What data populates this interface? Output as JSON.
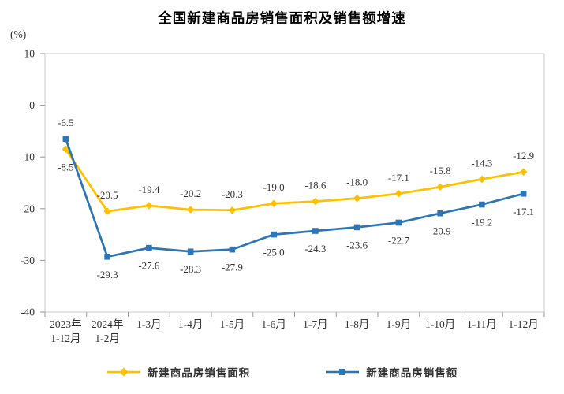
{
  "title": "全国新建商品房销售面积及销售额增速",
  "unit_label": "(%)",
  "chart_data": {
    "type": "line",
    "title": "全国新建商品房销售面积及销售额增速",
    "ylabel": "(%)",
    "ylim": [
      -40,
      10
    ],
    "yticks": [
      10,
      0,
      -10,
      -20,
      -30,
      -40
    ],
    "grid": false,
    "legend_position": "bottom",
    "categories": [
      "2023年\n1-12月",
      "2024年\n1-2月",
      "1-3月",
      "1-4月",
      "1-5月",
      "1-6月",
      "1-7月",
      "1-8月",
      "1-9月",
      "1-10月",
      "1-11月",
      "1-12月"
    ],
    "series": [
      {
        "name": "新建商品房销售面积",
        "color": "#FFC000",
        "marker": "diamond",
        "label_position": "above",
        "first_label_position": "below",
        "values": [
          -8.5,
          -20.5,
          -19.4,
          -20.2,
          -20.3,
          -19.0,
          -18.6,
          -18.0,
          -17.1,
          -15.8,
          -14.3,
          -12.9
        ]
      },
      {
        "name": "新建商品房销售额",
        "color": "#2E75B6",
        "marker": "square",
        "label_position": "below",
        "first_label_position": "above",
        "values": [
          -6.5,
          -29.3,
          -27.6,
          -28.3,
          -27.9,
          -25.0,
          -24.3,
          -23.6,
          -22.7,
          -20.9,
          -19.2,
          -17.1
        ]
      }
    ]
  },
  "colors": {
    "axis_text": "#333333",
    "data_label_text": "#333333",
    "plot_border": "#c9c9c9",
    "tick": "#9a9a9a",
    "background": "#ffffff"
  }
}
